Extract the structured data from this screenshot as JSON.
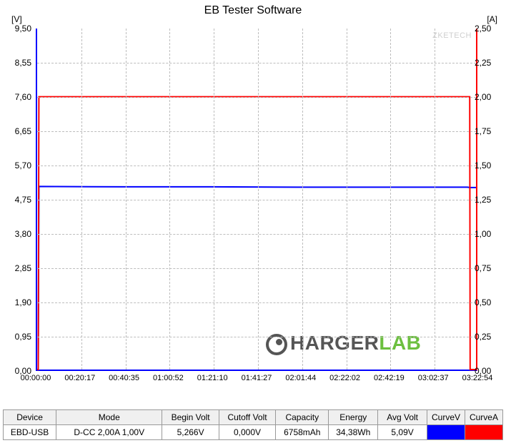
{
  "chart": {
    "title": "EB Tester Software",
    "watermark": "ZKETECH",
    "left_axis": {
      "label": "[V]",
      "min": 0.0,
      "max": 9.5,
      "ticks": [
        "0,00",
        "0,95",
        "1,90",
        "2,85",
        "3,80",
        "4,75",
        "5,70",
        "6,65",
        "7,60",
        "8,55",
        "9,50"
      ]
    },
    "right_axis": {
      "label": "[A]",
      "min": 0.0,
      "max": 2.5,
      "ticks": [
        "0,00",
        "0,25",
        "0,50",
        "0,75",
        "1,00",
        "1,25",
        "1,50",
        "1,75",
        "2,00",
        "2,25",
        "2,50"
      ]
    },
    "x_axis": {
      "ticks": [
        "00:00:00",
        "00:20:17",
        "00:40:35",
        "01:00:52",
        "01:21:10",
        "01:41:27",
        "02:01:44",
        "02:22:02",
        "02:42:19",
        "03:02:37",
        "03:22:54"
      ],
      "minutes_max": 202.9
    },
    "grid_color": "#bdbdbd",
    "background": "#ffffff",
    "voltage_curve": {
      "color": "#0000ff",
      "width": 2,
      "points": [
        [
          0.5,
          0
        ],
        [
          0.8,
          5.1
        ],
        [
          40,
          5.09
        ],
        [
          80,
          5.09
        ],
        [
          120,
          5.08
        ],
        [
          160,
          5.08
        ],
        [
          199,
          5.08
        ],
        [
          200,
          5.07
        ],
        [
          202.9,
          5.07
        ]
      ]
    },
    "current_curve": {
      "color": "#ff0000",
      "width": 2,
      "points": [
        [
          0,
          0
        ],
        [
          0.5,
          0
        ],
        [
          0.8,
          2.0
        ],
        [
          199.5,
          2.0
        ],
        [
          200,
          2.0
        ],
        [
          200.2,
          0
        ],
        [
          202.9,
          0
        ]
      ]
    },
    "logo": {
      "text1": "HARGER",
      "text2": "LAB"
    }
  },
  "table": {
    "headers": [
      "Device",
      "Mode",
      "Begin Volt",
      "Cutoff Volt",
      "Capacity",
      "Energy",
      "Avg Volt",
      "CurveV",
      "CurveA"
    ],
    "row": {
      "device": "EBD-USB",
      "mode": "D-CC 2,00A 1,00V",
      "begin_volt": "5,266V",
      "cutoff_volt": "0,000V",
      "capacity": "6758mAh",
      "energy": "34,38Wh",
      "avg_volt": "5,09V"
    },
    "curveV_color": "#0000ff",
    "curveA_color": "#ff0000",
    "col_widths": [
      "70",
      "140",
      "75",
      "75",
      "70",
      "65",
      "65",
      "50",
      "50"
    ]
  }
}
